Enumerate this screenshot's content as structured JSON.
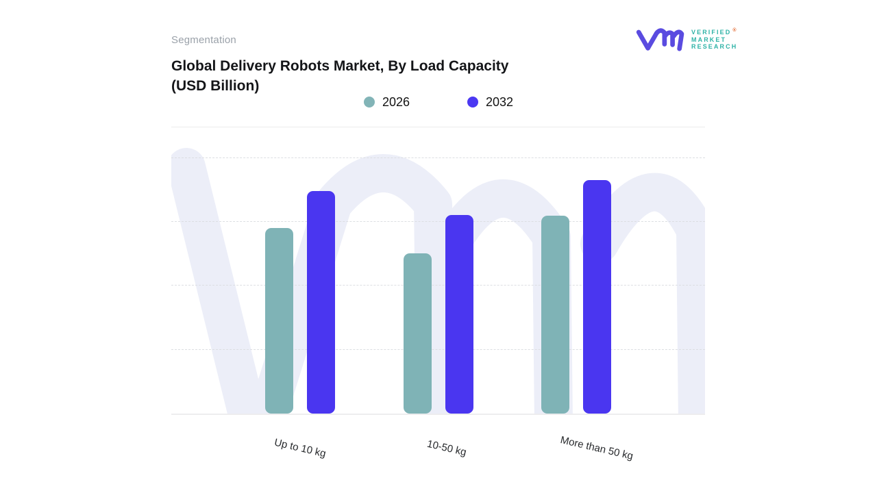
{
  "header": {
    "eyebrow": "Segmentation",
    "title_line1": "Global Delivery Robots Market, By Load Capacity",
    "title_line2": "(USD Billion)"
  },
  "legend": {
    "items": [
      {
        "label": "2026",
        "color": "#82B4B7"
      },
      {
        "label": "2032",
        "color": "#4B38F2"
      }
    ]
  },
  "chart_data": {
    "type": "bar",
    "title": "Global Delivery Robots Market, By Load Capacity (USD Billion)",
    "categories": [
      "Up to 10 kg",
      "10-50 kg",
      "More than 50 kg"
    ],
    "series": [
      {
        "name": "2026",
        "color": "#7FB3B6",
        "values": [
          2.9,
          2.51,
          3.1
        ]
      },
      {
        "name": "2032",
        "color": "#4A36F0",
        "values": [
          3.48,
          3.11,
          3.65
        ]
      }
    ],
    "xlabel": "",
    "ylabel": "",
    "ylim": [
      0,
      4.48
    ],
    "gridline_values": [
      1,
      2,
      3,
      4
    ],
    "grid": "horizontal-dashed",
    "legend_position": "top-center",
    "y_axis_tick_labels": "none (unlabeled axis; values estimated in gridline units)",
    "x_label_rotation_deg": 13
  },
  "watermark": {
    "name": "vmr-watermark",
    "color": "#ECEEF8"
  },
  "brand": {
    "lines": [
      "VERIFIED",
      "MARKET",
      "RESEARCH"
    ],
    "registered_mark": "®",
    "mark_color": "#5A4BE0",
    "text_color": "#2FB3A7",
    "registered_color": "#E2672E"
  }
}
